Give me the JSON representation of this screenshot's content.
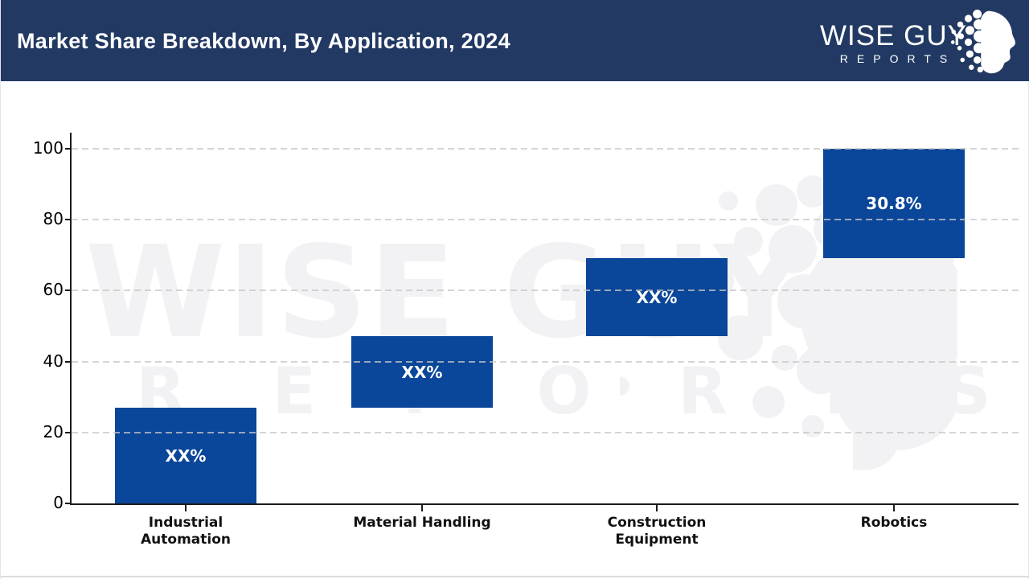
{
  "header": {
    "title": "Market Share Breakdown, By Application, 2024",
    "bg_color": "#223963",
    "logo": {
      "line1": "WISE GUY",
      "line2": "REPORTS"
    }
  },
  "watermark": {
    "line1": "WISE GUY",
    "line2": "R E P O R T S"
  },
  "chart_data": {
    "type": "bar",
    "subtype": "stacked-waterfall",
    "title": "Market Share Breakdown, By Application, 2024",
    "categories": [
      "Industrial Automation",
      "Material Handling",
      "Construction Equipment",
      "Robotics"
    ],
    "categories_lines": [
      [
        "Industrial",
        "Automation"
      ],
      [
        "Material Handling"
      ],
      [
        "Construction",
        "Equipment"
      ],
      [
        "Robotics"
      ]
    ],
    "segments": [
      {
        "category": "Industrial Automation",
        "start": 0,
        "end": 27.0,
        "value": 27.0,
        "label": "XX%"
      },
      {
        "category": "Material Handling",
        "start": 27.0,
        "end": 47.2,
        "value": 20.2,
        "label": "XX%"
      },
      {
        "category": "Construction Equipment",
        "start": 47.2,
        "end": 69.2,
        "value": 22.0,
        "label": "XX%"
      },
      {
        "category": "Robotics",
        "start": 69.2,
        "end": 100,
        "value": 30.8,
        "label": "30.8%"
      }
    ],
    "xlabel": "",
    "ylabel": "",
    "ylim": [
      0,
      105
    ],
    "yticks": [
      0,
      20,
      40,
      60,
      80,
      100
    ],
    "grid": {
      "axis": "y",
      "style": "dashed",
      "drawn_over_bars": true
    },
    "legend": null,
    "bar_color": "#0a4699",
    "bar_label_color": "#ffffff",
    "grid_color": "#c7c7c7",
    "axis_color": "#1a1a1a"
  }
}
